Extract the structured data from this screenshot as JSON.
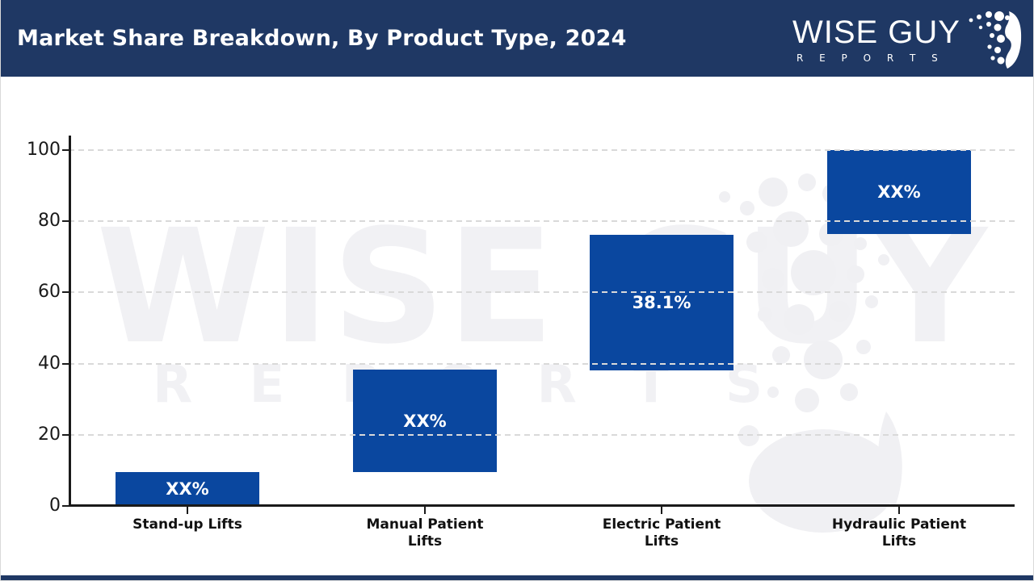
{
  "header": {
    "title": "Market Share Breakdown, By Product Type, 2024",
    "logo": {
      "name": "WISE GUY",
      "tagline": "R E P O R T S"
    }
  },
  "watermark": {
    "name": "WISE GUY",
    "tagline": "R E P O R T S"
  },
  "colors": {
    "header_bg": "#1f3864",
    "bar": "#0a479f",
    "gridline": "#d9d9d9",
    "axis": "#1a1a1a",
    "bar_label_text": "#ffffff"
  },
  "chart_data": {
    "type": "bar",
    "subtype": "floating-segment-waterfall",
    "title": "Market Share Breakdown, By Product Type, 2024",
    "categories": [
      "Stand-up Lifts",
      "Manual Patient Lifts",
      "Electric Patient Lifts",
      "Hydraulic Patient Lifts"
    ],
    "category_lines": [
      [
        "Stand-up Lifts"
      ],
      [
        "Manual Patient",
        "Lifts"
      ],
      [
        "Electric Patient",
        "Lifts"
      ],
      [
        "Hydraulic Patient",
        "Lifts"
      ]
    ],
    "segments": [
      {
        "category": "Stand-up Lifts",
        "start": 0,
        "end": 9.5,
        "label": "XX%"
      },
      {
        "category": "Manual Patient Lifts",
        "start": 9.5,
        "end": 38.3,
        "label": "XX%"
      },
      {
        "category": "Electric Patient Lifts",
        "start": 38.2,
        "end": 76.3,
        "label": "38.1%",
        "value": 38.1
      },
      {
        "category": "Hydraulic Patient Lifts",
        "start": 76.5,
        "end": 100,
        "label": "XX%"
      }
    ],
    "yticks": [
      0,
      20,
      40,
      60,
      80,
      100
    ],
    "ylim": [
      0,
      104
    ],
    "xlabel": "",
    "ylabel": "",
    "grid": "dashed horizontal, drawn over bars",
    "legend": "none",
    "bar_color": "#0a479f"
  }
}
